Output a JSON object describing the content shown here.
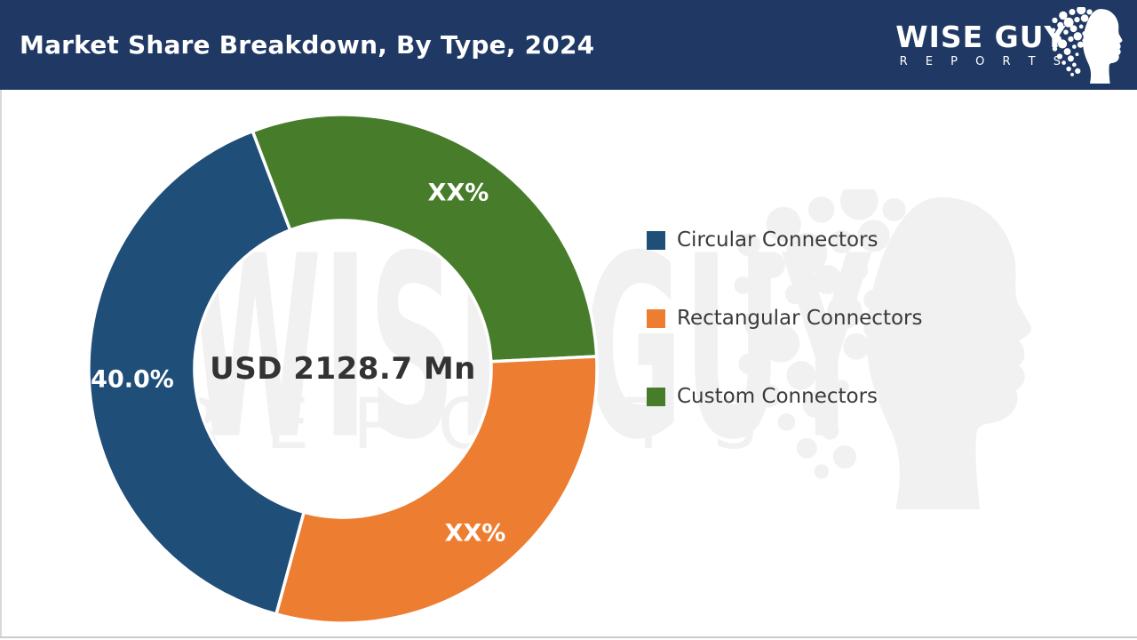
{
  "header": {
    "title": "Market Share Breakdown, By Type, 2024",
    "background_color": "#203864",
    "logo": {
      "line1": "WISE GUY",
      "line2": "R E P O R T S",
      "face_icon": "dotted-face-profile"
    }
  },
  "watermark": {
    "line1": "WISE GUY",
    "line2": "R E P O R T S"
  },
  "chart_data": {
    "type": "pie",
    "subtype": "donut",
    "title": "Market Share Breakdown, By Type, 2024",
    "center_label": "USD 2128.7 Mn",
    "segments": [
      {
        "label": "Circular Connectors",
        "value": 40.0,
        "display_label": "40.0%",
        "color": "#1F4E79"
      },
      {
        "label": "Rectangular Connectors",
        "value": 30.0,
        "display_label": "XX%",
        "color": "#ED7D31"
      },
      {
        "label": "Custom Connectors",
        "value": 30.0,
        "display_label": "XX%",
        "color": "#467C2A"
      }
    ],
    "start_angle_deg": 195.2,
    "draw_order": [
      0,
      2,
      1
    ],
    "hole_ratio": 0.585,
    "legend_position": "right",
    "label_color": "#ffffff",
    "center_label_color": "#333333"
  }
}
